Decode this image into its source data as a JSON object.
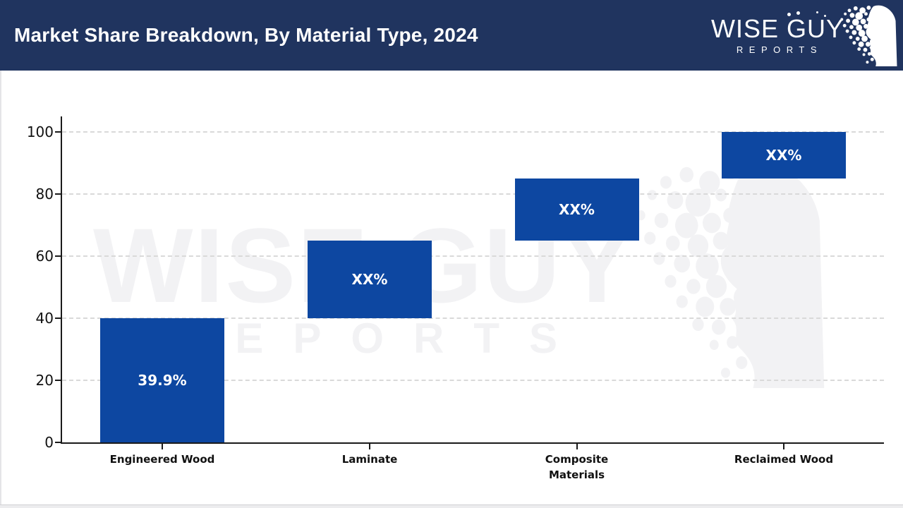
{
  "header": {
    "title": "Market Share Breakdown, By Material Type, 2024",
    "logo": {
      "line1": "WISE GUY",
      "line2": "REPORTS"
    },
    "bg_color": "#20345f"
  },
  "watermark": {
    "line1": "WISE GUY",
    "line2": "REPORTS"
  },
  "chart_data": {
    "type": "bar",
    "subtype": "waterfall",
    "title": "Market Share Breakdown, By Material Type, 2024",
    "categories": [
      "Engineered Wood",
      "Laminate",
      "Composite\nMaterials",
      "Reclaimed Wood"
    ],
    "segments": [
      {
        "category": "Engineered Wood",
        "start": 0,
        "end": 39.9,
        "label": "39.9%"
      },
      {
        "category": "Laminate",
        "start": 39.9,
        "end": 64.9,
        "label": "XX%"
      },
      {
        "category": "Composite Materials",
        "start": 64.9,
        "end": 85,
        "label": "XX%"
      },
      {
        "category": "Reclaimed Wood",
        "start": 85,
        "end": 100,
        "label": "XX%"
      }
    ],
    "ylim": [
      0,
      100
    ],
    "yticks": [
      0,
      20,
      40,
      60,
      80,
      100
    ],
    "grid": "horizontal-dashed",
    "legend": "none",
    "bar_color": "#0d47a1",
    "bar_label_color": "#ffffff",
    "axis_color": "#1a1a1a",
    "gridline_color": "#d9d9d9"
  }
}
